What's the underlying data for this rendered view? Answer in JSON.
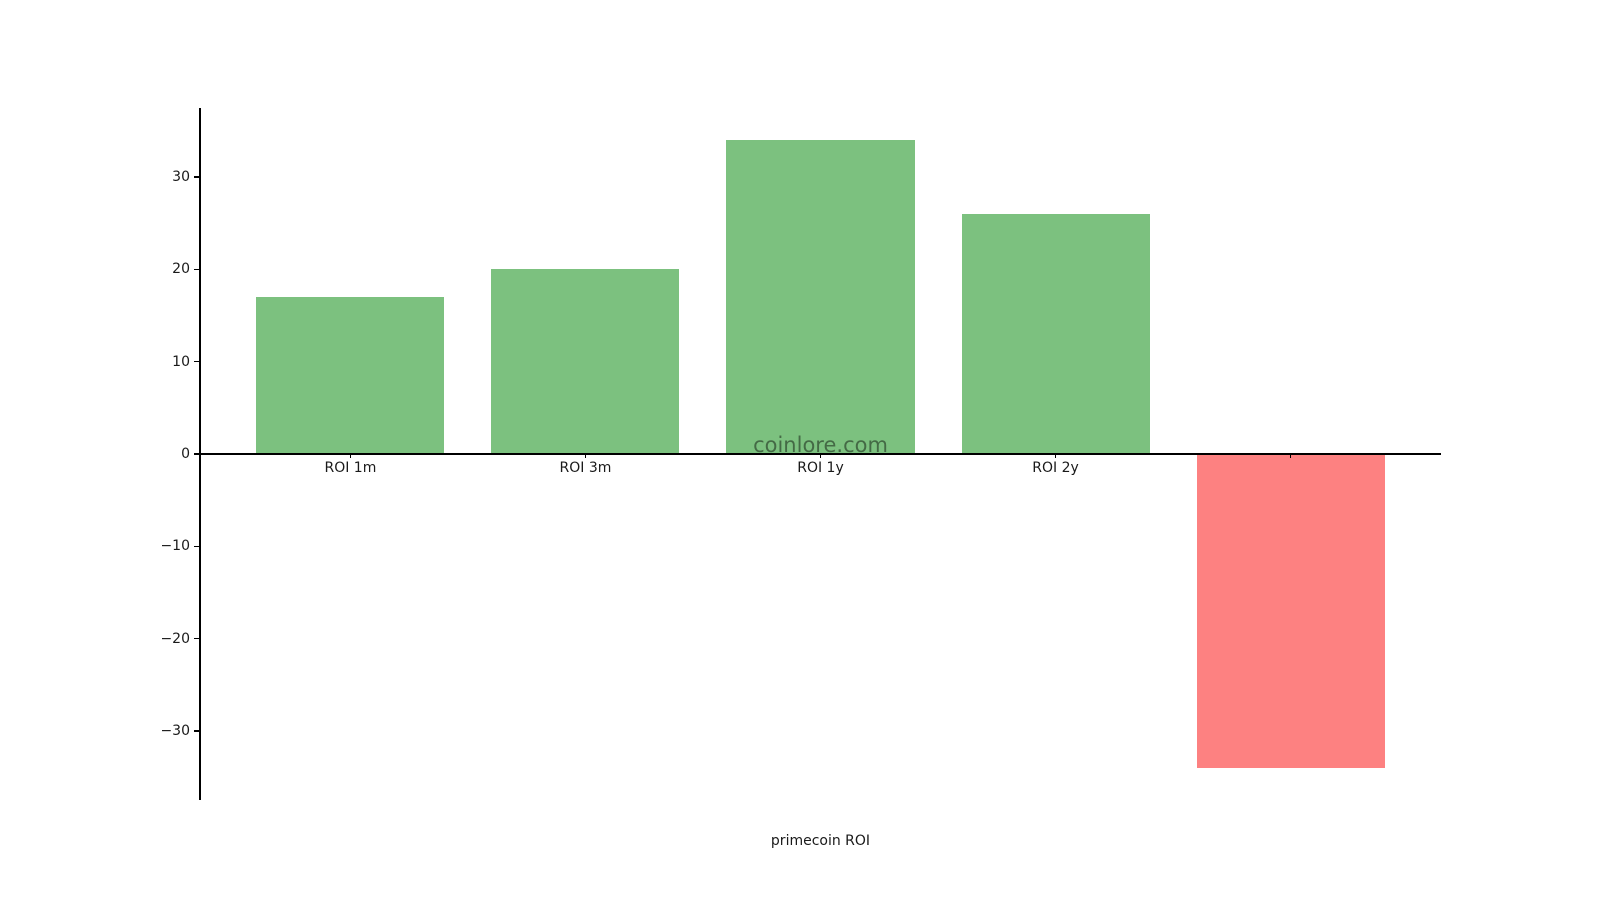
{
  "figure": {
    "background": "#ffffff"
  },
  "chart_data": {
    "type": "bar",
    "title": "",
    "xlabel": "primecoin ROI",
    "ylabel": "",
    "categories": [
      "ROI 1m",
      "ROI 3m",
      "ROI 1y",
      "ROI 2y",
      ""
    ],
    "values": [
      17,
      20,
      34,
      26,
      -34
    ],
    "bar_colors": [
      "#7cc17f",
      "#7cc17f",
      "#7cc17f",
      "#7cc17f",
      "#fd8181"
    ],
    "positive_color": "#7cc17f",
    "negative_color": "#fd8181",
    "yticks": [
      30,
      20,
      10,
      0,
      -10,
      -20,
      -30
    ],
    "ylim": [
      -37.5,
      37.5
    ],
    "xlim": [
      -0.64,
      4.64
    ],
    "bar_width": 0.8,
    "grid": false,
    "legend": "none",
    "watermark": "coinlore.com",
    "axis_color": "#000000",
    "text_color": "#1a1a1a"
  }
}
